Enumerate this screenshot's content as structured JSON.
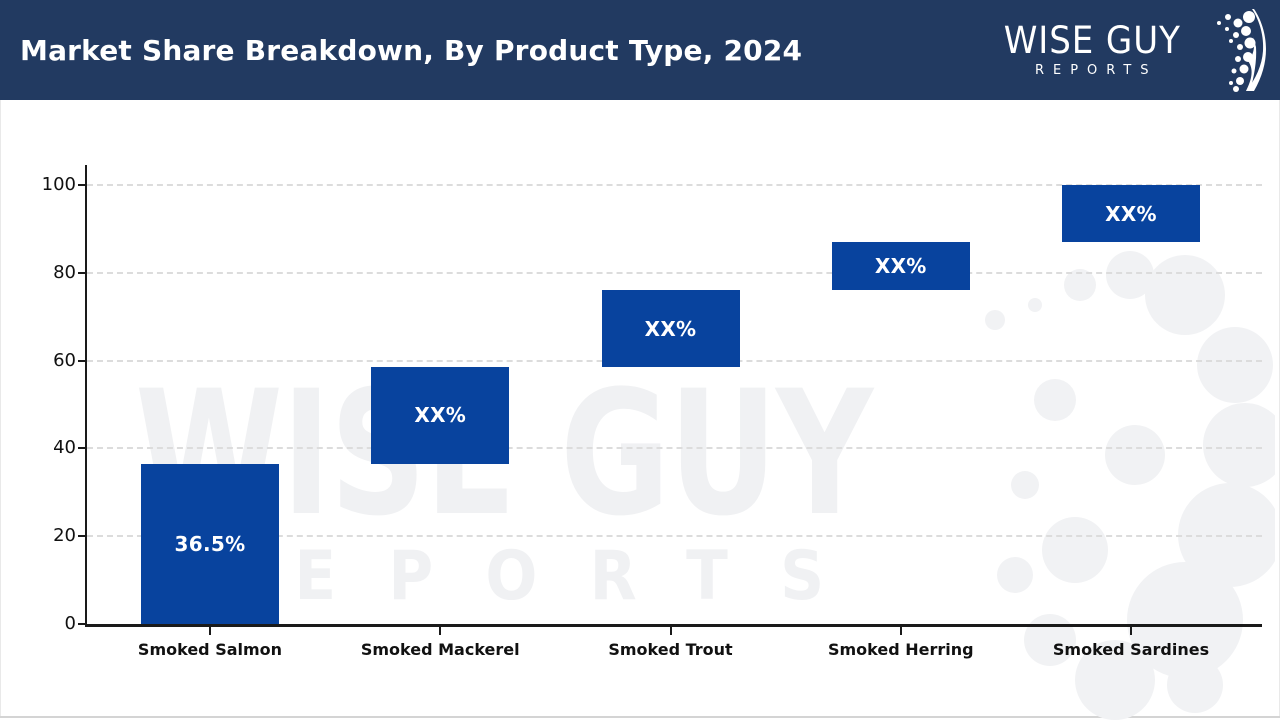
{
  "header": {
    "title": "Market Share Breakdown, By Product Type, 2024",
    "logo": {
      "line1": "WISE GUY",
      "line2": "REPORTS"
    }
  },
  "watermark": {
    "line1": "WISE GUY",
    "line2": "REPORTS"
  },
  "colors": {
    "header_bg": "#223a61",
    "bar": "#08439e",
    "bar_label_text": "#ffffff",
    "gridline": "#dcdcdc",
    "axis": "#1a1a1a",
    "watermark": "#f0f1f3"
  },
  "chart_data": {
    "type": "bar",
    "subtype": "waterfall",
    "title": "Market Share Breakdown, By Product Type, 2024",
    "xlabel": "",
    "ylabel": "",
    "categories": [
      "Smoked Salmon",
      "Smoked Mackerel",
      "Smoked Trout",
      "Smoked Herring",
      "Smoked Sardines"
    ],
    "segments": [
      {
        "category": "Smoked Salmon",
        "start": 0,
        "end": 36.5,
        "label": "36.5%"
      },
      {
        "category": "Smoked Mackerel",
        "start": 36.5,
        "end": 58.5,
        "label": "XX%"
      },
      {
        "category": "Smoked Trout",
        "start": 58.5,
        "end": 76,
        "label": "XX%"
      },
      {
        "category": "Smoked Herring",
        "start": 76,
        "end": 87,
        "label": "XX%"
      },
      {
        "category": "Smoked Sardines",
        "start": 87,
        "end": 100,
        "label": "XX%"
      }
    ],
    "yticks": [
      0,
      20,
      40,
      60,
      80,
      100
    ],
    "ylim": [
      0,
      105
    ],
    "grid": "horizontal-dashed",
    "legend": "none"
  }
}
